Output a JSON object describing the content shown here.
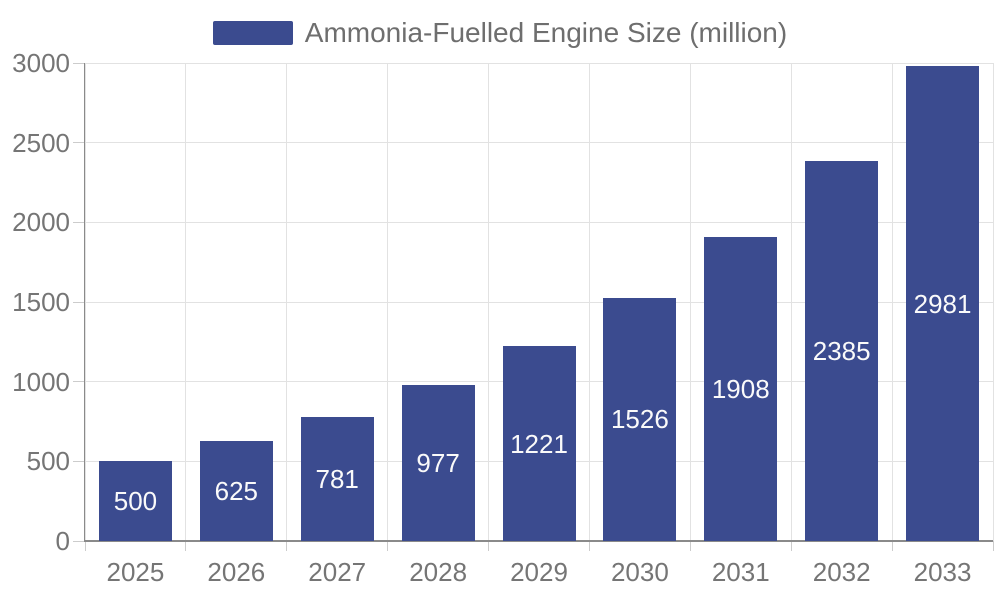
{
  "legend": {
    "position": "top-center"
  },
  "colors": {
    "bar": "#3B4B8F",
    "bar_label_text": "#FAFAFA",
    "axis_text": "#757575",
    "legend_text": "#6E6E6E",
    "axis_line": "#8A8A8A",
    "gridline": "#E2E2E2",
    "tick": "#CCCCCC",
    "background": "#FFFFFF"
  },
  "chart_data": {
    "type": "bar",
    "title": "",
    "xlabel": "",
    "ylabel": "",
    "categories": [
      "2025",
      "2026",
      "2027",
      "2028",
      "2029",
      "2030",
      "2031",
      "2032",
      "2033"
    ],
    "series": [
      {
        "name": "Ammonia-Fuelled Engine Size (million)",
        "values": [
          500,
          625,
          781,
          977,
          1221,
          1526,
          1908,
          2385,
          2981
        ]
      }
    ],
    "ylim": [
      0,
      3000
    ],
    "yticks": [
      0,
      500,
      1000,
      1500,
      2000,
      2500,
      3000
    ],
    "grid": "on",
    "legend_position": "top-center",
    "value_labels": "inside-center"
  }
}
